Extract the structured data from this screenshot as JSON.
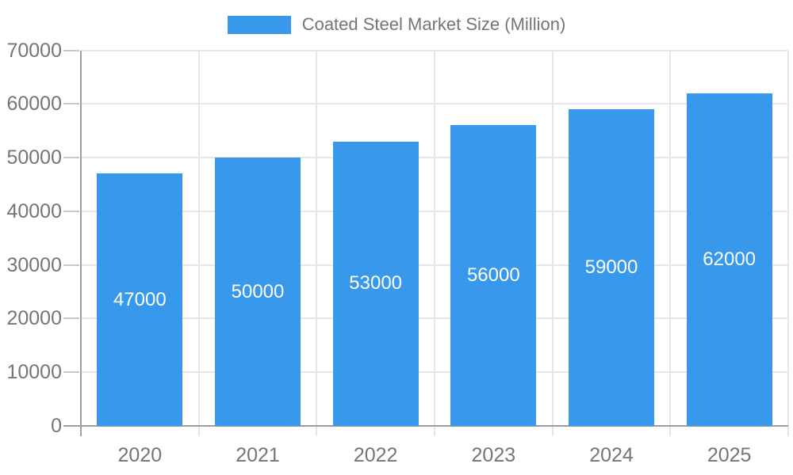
{
  "chart_data": {
    "type": "bar",
    "title": "Coated Steel Market Size (Million)",
    "categories": [
      "2020",
      "2021",
      "2022",
      "2023",
      "2024",
      "2025"
    ],
    "series": [
      {
        "name": "Coated Steel Market Size (Million)",
        "values": [
          47000,
          50000,
          53000,
          56000,
          59000,
          62000
        ]
      }
    ],
    "value_labels": [
      "47000",
      "50000",
      "53000",
      "56000",
      "59000",
      "62000"
    ],
    "xlabel": "",
    "ylabel": "",
    "ylim": [
      0,
      70000
    ],
    "yticks": [
      0,
      10000,
      20000,
      30000,
      40000,
      50000,
      60000,
      70000
    ],
    "ytick_labels": [
      "0",
      "10000",
      "20000",
      "30000",
      "40000",
      "50000",
      "60000",
      "70000"
    ],
    "grid": true,
    "legend_position": "top",
    "colors": {
      "bar": "#3899ec",
      "bar_label": "#ffffff",
      "axis_line": "#9e9e9e",
      "gridline": "#e6e6e6",
      "tick_mark": "#c8c8c8",
      "tick_label": "#757575",
      "legend_text": "#757575",
      "background": "#ffffff"
    }
  }
}
